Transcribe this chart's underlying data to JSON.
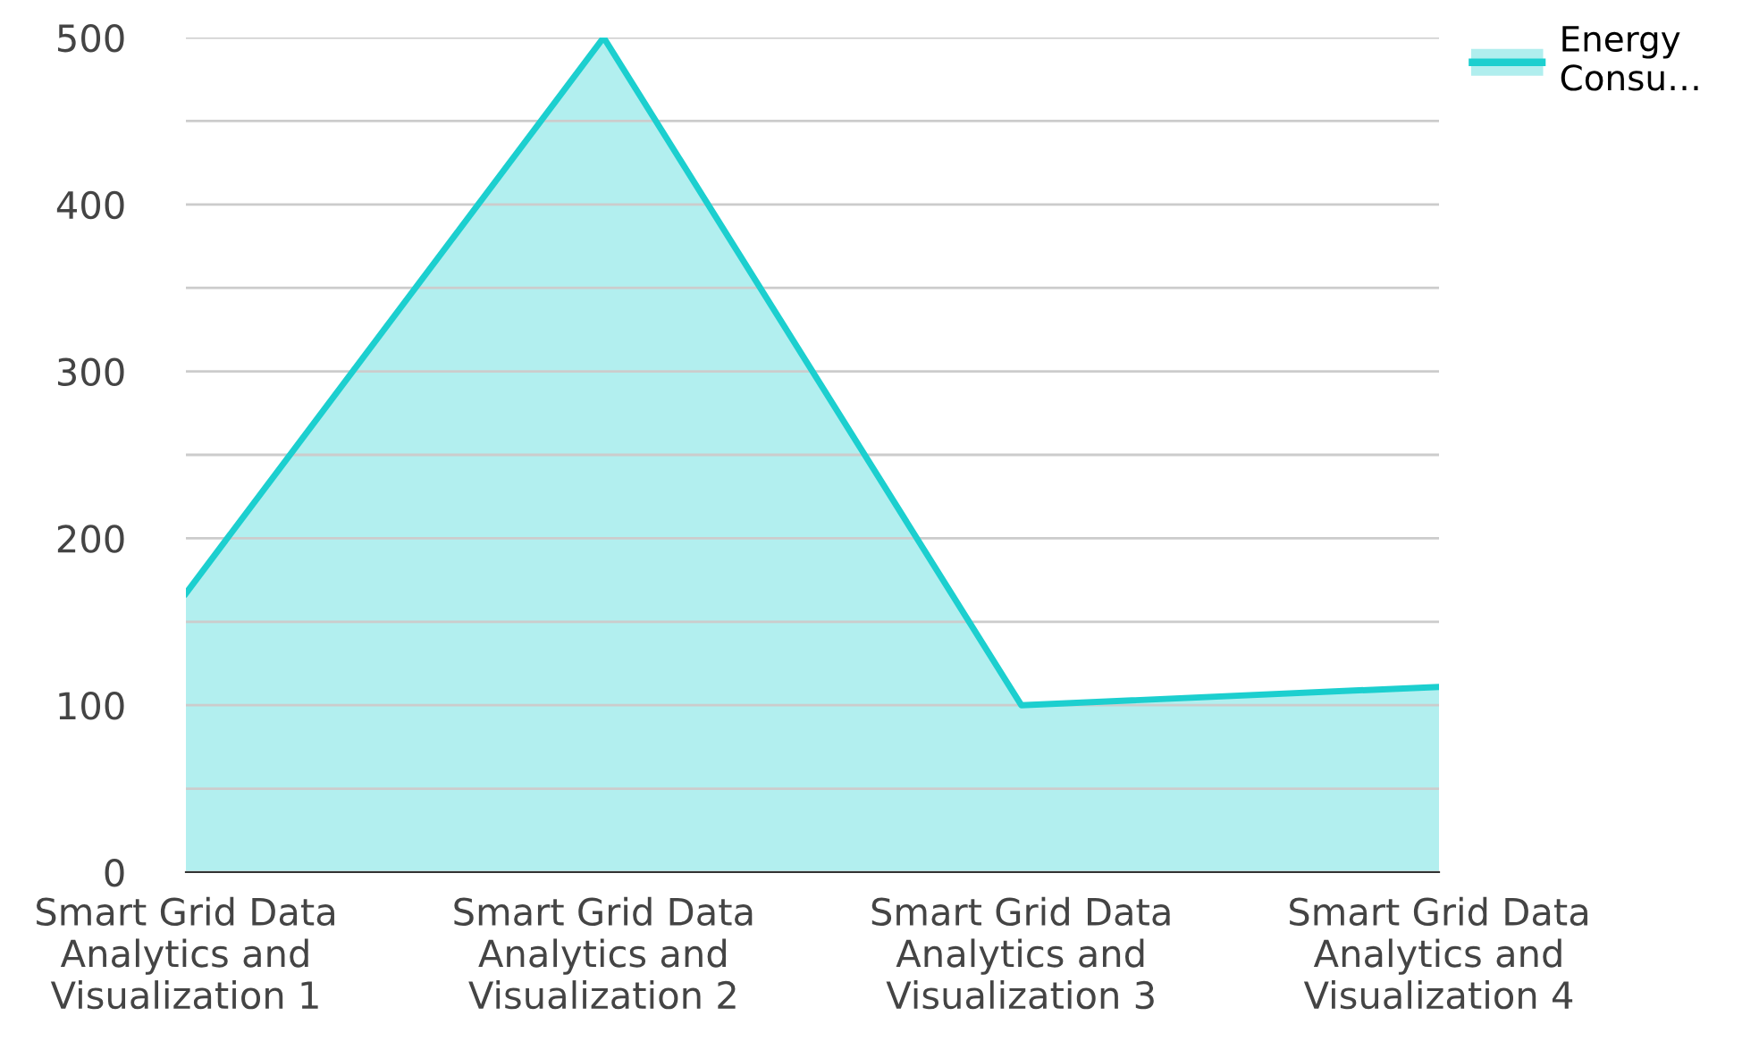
{
  "chart_data": {
    "type": "area",
    "categories": [
      "Smart Grid Data\nAnalytics and\nVisualization 1",
      "Smart Grid Data\nAnalytics and\nVisualization 2",
      "Smart Grid Data\nAnalytics and\nVisualization 3",
      "Smart Grid Data\nAnalytics and\nVisualization 4"
    ],
    "series": [
      {
        "name": "Energy Consu…",
        "color": "#1ccfcf",
        "values": [
          167,
          500,
          100,
          111
        ]
      }
    ],
    "ylim": [
      0,
      500
    ],
    "yticks": [
      0,
      {
        "value": 50,
        "label": null
      },
      100,
      {
        "value": 150,
        "label": null
      },
      200,
      {
        "value": 250,
        "label": null
      },
      300,
      {
        "value": 350,
        "label": null
      },
      400,
      {
        "value": 450,
        "label": null
      },
      500
    ],
    "grid": "y",
    "legend": "top right"
  }
}
